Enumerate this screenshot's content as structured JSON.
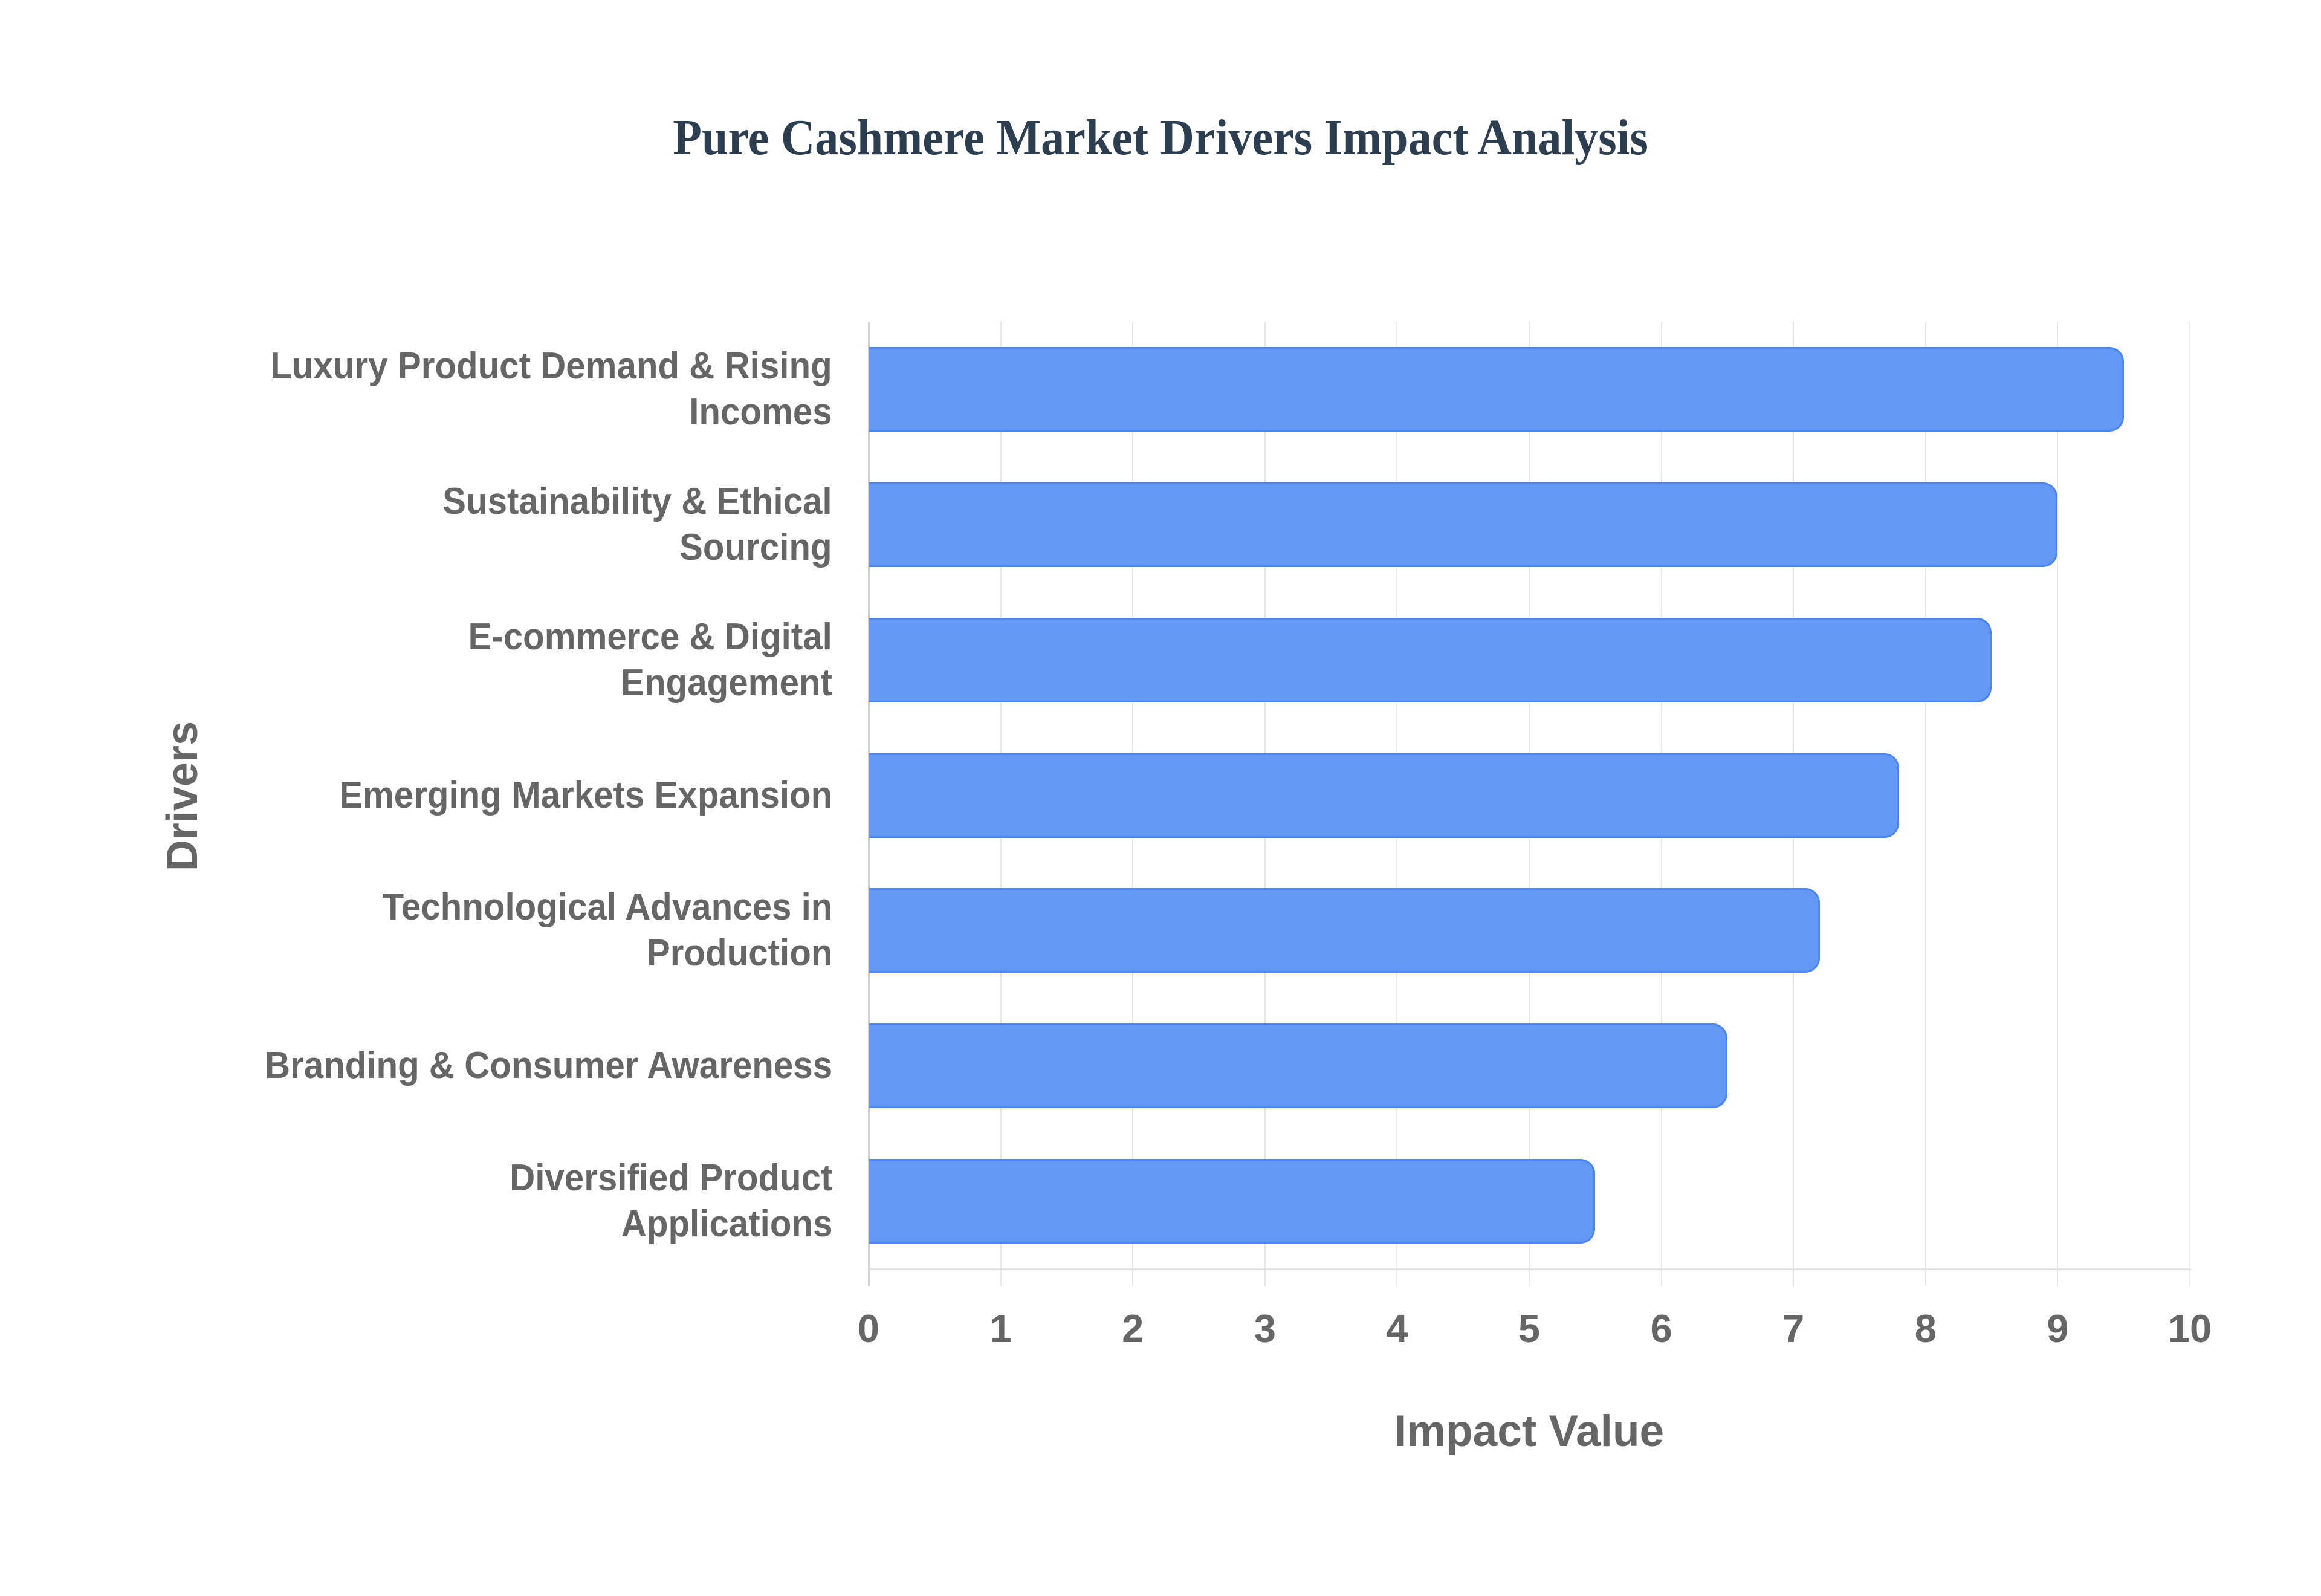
{
  "title": "Pure Cashmere Market Drivers Impact Analysis",
  "colors": {
    "title": "#2c3e50",
    "bar_fill": "#6399f4",
    "bar_border": "#4a86ee",
    "axis_text": "#666666",
    "gridline": "#e6e6e6"
  },
  "x_axis": {
    "title": "Impact Value",
    "ticks": [
      "0",
      "1",
      "2",
      "3",
      "4",
      "5",
      "6",
      "7",
      "8",
      "9",
      "10"
    ]
  },
  "y_axis": {
    "title": "Drivers"
  },
  "categories": [
    {
      "label": "Luxury Product Demand & Rising Incomes",
      "lines": [
        "Luxury Product Demand & Rising",
        "Incomes"
      ],
      "value": 9.5
    },
    {
      "label": "Sustainability & Ethical Sourcing",
      "lines": [
        "Sustainability & Ethical",
        "Sourcing"
      ],
      "value": 9.0
    },
    {
      "label": "E-commerce & Digital Engagement",
      "lines": [
        "E-commerce & Digital",
        "Engagement"
      ],
      "value": 8.5
    },
    {
      "label": "Emerging Markets Expansion",
      "lines": [
        "Emerging Markets Expansion"
      ],
      "value": 7.8
    },
    {
      "label": "Technological Advances in Production",
      "lines": [
        "Technological Advances in",
        "Production"
      ],
      "value": 7.2
    },
    {
      "label": "Branding & Consumer Awareness",
      "lines": [
        "Branding & Consumer Awareness"
      ],
      "value": 6.5
    },
    {
      "label": "Diversified Product Applications",
      "lines": [
        "Diversified Product",
        "Applications"
      ],
      "value": 5.5
    }
  ],
  "chart_data": {
    "type": "bar",
    "orientation": "horizontal",
    "title": "Pure Cashmere Market Drivers Impact Analysis",
    "xlabel": "Impact Value",
    "ylabel": "Drivers",
    "categories": [
      "Luxury Product Demand & Rising Incomes",
      "Sustainability & Ethical Sourcing",
      "E-commerce & Digital Engagement",
      "Emerging Markets Expansion",
      "Technological Advances in Production",
      "Branding & Consumer Awareness",
      "Diversified Product Applications"
    ],
    "values": [
      9.5,
      9.0,
      8.5,
      7.8,
      7.2,
      6.5,
      5.5
    ],
    "xlim": [
      0,
      10
    ],
    "x_ticks": [
      0,
      1,
      2,
      3,
      4,
      5,
      6,
      7,
      8,
      9,
      10
    ],
    "grid": {
      "vertical": true,
      "horizontal": false
    },
    "legend": null,
    "bar_color": "#6399f4"
  }
}
